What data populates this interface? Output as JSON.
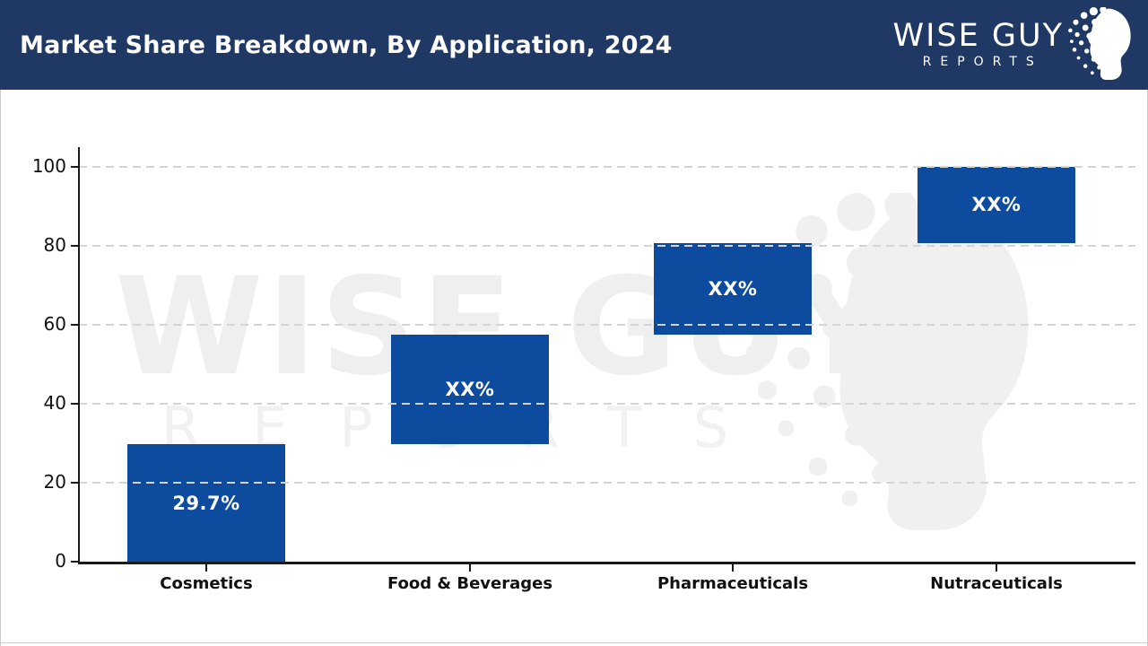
{
  "header": {
    "title": "Market Share Breakdown, By Application, 2024",
    "bg_color": "#1f3864",
    "logo": {
      "line1": "WISE GUY",
      "line2": "REPORTS"
    }
  },
  "watermark": {
    "line1": "WISE GUY",
    "line2": "REPORTS"
  },
  "colors": {
    "header_bg": "#1f3864",
    "bar": "#0d4b9f",
    "grid": "#d5d5d5",
    "axis": "#1a1a1a",
    "watermark": "#efefef"
  },
  "chart_data": {
    "type": "bar",
    "subtype": "waterfall",
    "title": "Market Share Breakdown, By Application, 2024",
    "categories": [
      "Cosmetics",
      "Food & Beverages",
      "Pharmaceuticals",
      "Nutraceuticals"
    ],
    "bars": [
      {
        "category": "Cosmetics",
        "start": 0,
        "end": 29.7,
        "label": "29.7%"
      },
      {
        "category": "Food & Beverages",
        "start": 29.7,
        "end": 57.5,
        "label": "XX%"
      },
      {
        "category": "Pharmaceuticals",
        "start": 57.5,
        "end": 80.7,
        "label": "XX%"
      },
      {
        "category": "Nutraceuticals",
        "start": 80.7,
        "end": 100,
        "label": "XX%"
      }
    ],
    "yticks": [
      0,
      20,
      40,
      60,
      80,
      100
    ],
    "ylim": [
      0,
      105
    ],
    "xlabel": "",
    "ylabel": "",
    "grid": "horizontal-dashed-above-bars",
    "legend": "none",
    "bar_color": "#0d4b9f"
  }
}
